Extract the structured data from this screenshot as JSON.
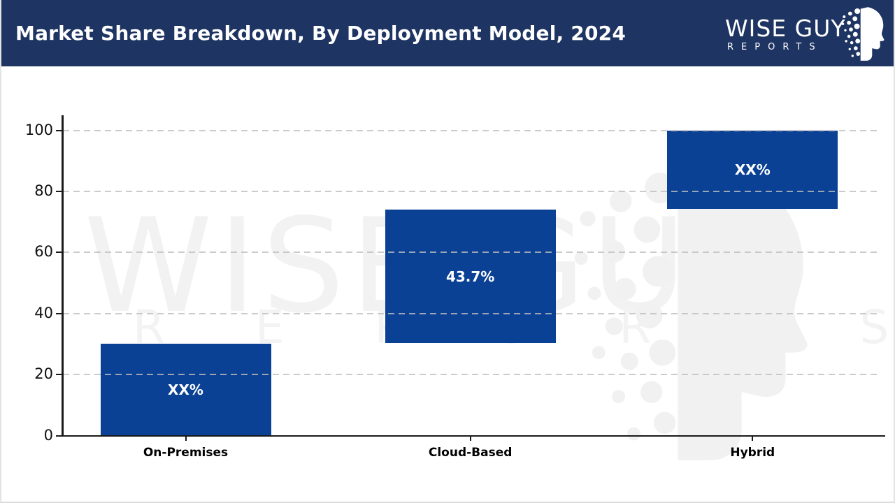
{
  "header": {
    "title": "Market Share Breakdown, By Deployment Model, 2024",
    "bg_color": "#1e3462",
    "logo": {
      "line1": "WISE GUY",
      "line2": "REPORTS"
    }
  },
  "watermark": {
    "line1": "WISE GUY",
    "line2": "R E P O R T S"
  },
  "chart_data": {
    "type": "bar",
    "variant": "floating_stacked_percentage",
    "title": "Market Share Breakdown, By Deployment Model, 2024",
    "categories": [
      "On-Premises",
      "Cloud-Based",
      "Hybrid"
    ],
    "bars": [
      {
        "category": "On-Premises",
        "from": 0,
        "to": 30.2,
        "label": "XX%"
      },
      {
        "category": "Cloud-Based",
        "from": 30.3,
        "to": 74.0,
        "label": "43.7%"
      },
      {
        "category": "Hybrid",
        "from": 74.3,
        "to": 100,
        "label": "XX%"
      }
    ],
    "yticks": [
      0,
      20,
      40,
      60,
      80,
      100
    ],
    "ylim": [
      0,
      105
    ],
    "xlabel": "",
    "ylabel": "",
    "legend": "none",
    "grid": {
      "axis": "y",
      "style": "dashed",
      "color": "#c8c8c8"
    },
    "bar_color": "#0b4194",
    "bar_label_color": "#ffffff",
    "axis_color": "#1a1a1a"
  }
}
